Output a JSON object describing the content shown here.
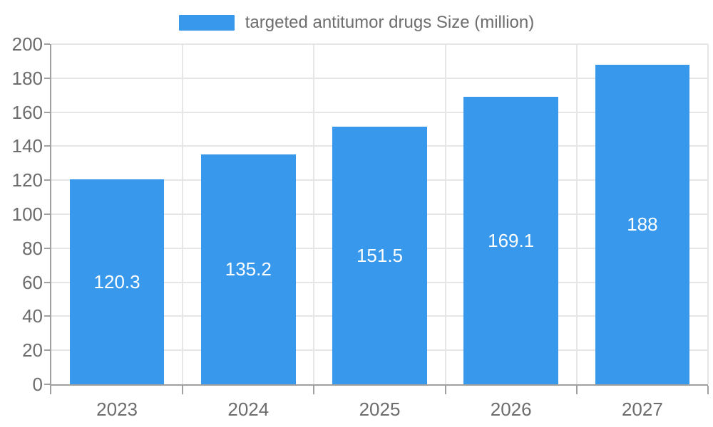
{
  "legend": {
    "label": "targeted antitumor drugs Size (million)"
  },
  "colors": {
    "bar": "#3898ec",
    "axis": "#a0a0a0",
    "grid": "#e6e6e6",
    "text": "#6d6d6d",
    "value_label": "#ffffff",
    "background": "#ffffff"
  },
  "chart_data": {
    "type": "bar",
    "title": "targeted antitumor drugs Size (million)",
    "categories": [
      "2023",
      "2024",
      "2025",
      "2026",
      "2027"
    ],
    "values": [
      120.3,
      135.2,
      151.5,
      169.1,
      188
    ],
    "xlabel": "",
    "ylabel": "",
    "ylim": [
      0,
      200
    ],
    "ytick_step": 20,
    "grid": true,
    "legend_position": "top-center",
    "bar_width_fraction": 0.72,
    "value_label_position": "center"
  }
}
